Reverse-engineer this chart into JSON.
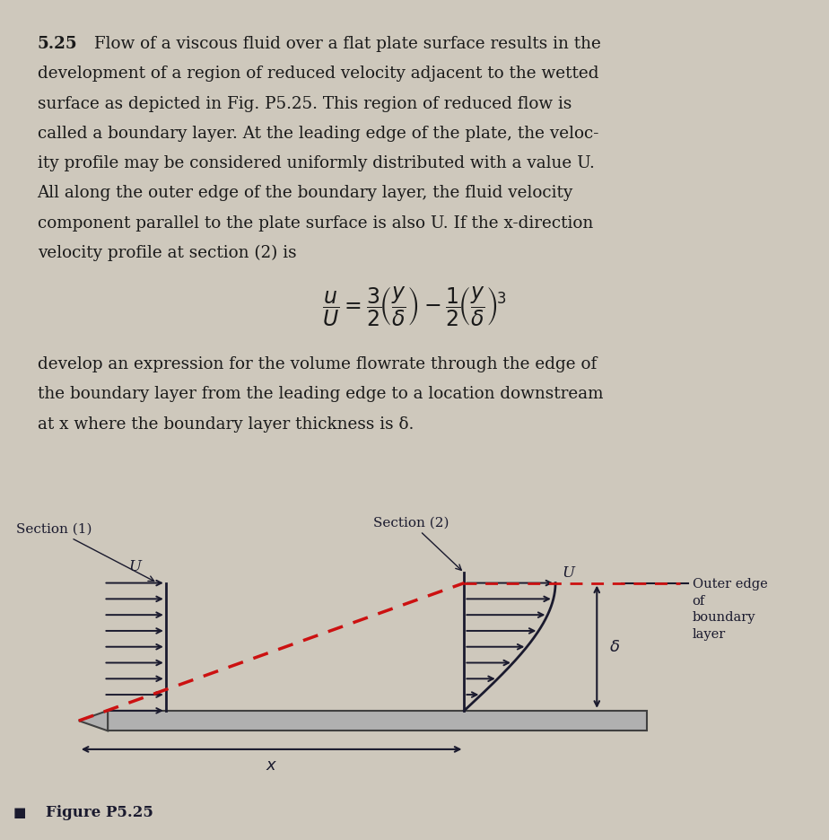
{
  "bg_color": "#cec8bc",
  "text_color": "#1a1a1a",
  "title_number": "5.25",
  "line1": " Flow of a viscous fluid over a flat plate surface results in the",
  "line2": "development of a region of reduced velocity adjacent to the wetted",
  "line3": "surface as depicted in Fig. P5.25. This region of reduced flow is",
  "line4": "called a boundary layer. At the leading edge of the plate, the veloc-",
  "line5": "ity profile may be considered uniformly distributed with a value U.",
  "line6": "All along the outer edge of the boundary layer, the fluid velocity",
  "line7": "component parallel to the plate surface is also U. If the x-direction",
  "line8": "velocity profile at section (2) is",
  "line9": "develop an expression for the volume flowrate through the edge of",
  "line10": "the boundary layer from the leading edge to a location downstream",
  "line11": "at x where the boundary layer thickness is δ.",
  "figure_caption": "Figure P5.25",
  "section1_label": "Section (1)",
  "section2_label": "Section (2)",
  "outer_edge_label1": "Outer edge",
  "outer_edge_label2": "of",
  "outer_edge_label3": "boundary",
  "outer_edge_label4": "layer",
  "U_label": "U",
  "delta_label": "δ",
  "x_label": "x",
  "arrow_color": "#1a1a2e",
  "dashed_color": "#cc1111",
  "plate_color": "#b0b0b0",
  "plate_edge": "#404040"
}
